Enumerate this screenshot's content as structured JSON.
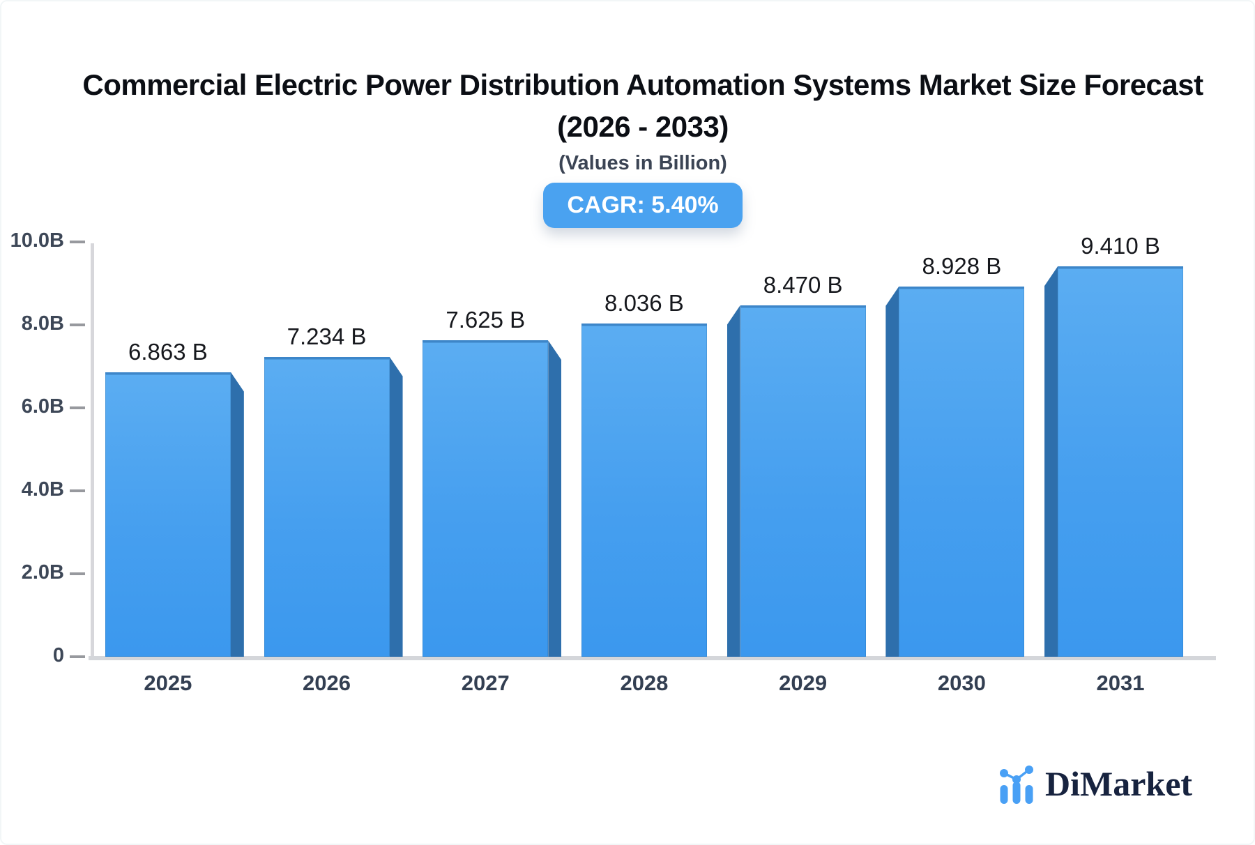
{
  "header": {
    "title_line1": "Commercial Electric Power Distribution Automation Systems Market Size Forecast",
    "title_line2": "(2026 - 2033)",
    "subtitle": "(Values in Billion)",
    "cagr_badge": "CAGR: 5.40%"
  },
  "chart_data": {
    "type": "bar",
    "title": "Commercial Electric Power Distribution Automation Systems Market Size Forecast (2026 - 2033)",
    "subtitle": "(Values in Billion)",
    "annotation": "CAGR: 5.40%",
    "categories": [
      "2025",
      "2026",
      "2027",
      "2028",
      "2029",
      "2030",
      "2031"
    ],
    "values": [
      6.863,
      7.234,
      7.625,
      8.036,
      8.47,
      8.928,
      9.41
    ],
    "value_labels": [
      "6.863 B",
      "7.234 B",
      "7.625 B",
      "8.036 B",
      "8.470 B",
      "8.928 B",
      "9.410 B"
    ],
    "unit": "Billion",
    "xlabel": "",
    "ylabel": "",
    "ytick_labels": [
      "10.0B",
      "8.0B",
      "6.0B",
      "4.0B",
      "2.0B",
      "0"
    ],
    "ytick_values": [
      10,
      8,
      6,
      4,
      2,
      0
    ],
    "ylim": [
      0,
      10
    ],
    "grid": false,
    "legend_position": "none",
    "bar_color_top": "#5badf2",
    "bar_color_bottom": "#3b98ee",
    "bar_side_color": "#2e6fac",
    "accent_color": "#4aa2f0"
  },
  "footer": {
    "logo_text": "DiMarket",
    "logo_icon": "bar-chart-trend-icon"
  }
}
